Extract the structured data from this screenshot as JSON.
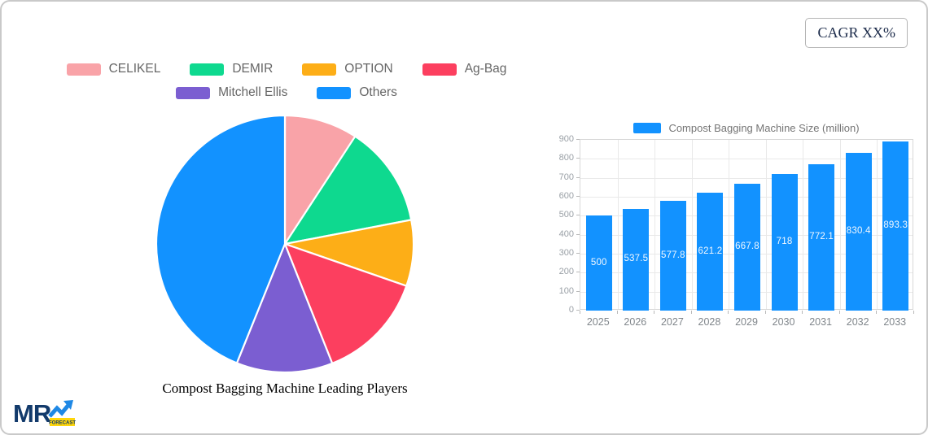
{
  "page": {
    "cagr_label": "CAGR XX%"
  },
  "logo": {
    "text": "MR",
    "sub": "FORECAST",
    "text_color": "#123a6b",
    "arrow_color": "#1e88e5",
    "tag_color": "#ffd60a"
  },
  "chart_data": [
    {
      "type": "pie",
      "title": "Compost Bagging Machine Leading Players",
      "legend_position": "top",
      "slices": [
        {
          "label": "CELIKEL",
          "percent": 9.2,
          "color": "#F9A3A8"
        },
        {
          "label": "DEMIR",
          "percent": 12.8,
          "color": "#0ED98F"
        },
        {
          "label": "OPTION",
          "percent": 8.3,
          "color": "#FDAE17"
        },
        {
          "label": "Ag-Bag",
          "percent": 13.7,
          "color": "#FC3F5F"
        },
        {
          "label": "Mitchell Ellis",
          "percent": 12.1,
          "color": "#7B5ED1"
        },
        {
          "label": "Others",
          "percent": 43.9,
          "color": "#1292FF"
        }
      ]
    },
    {
      "type": "bar",
      "legend": "Compost Bagging Machine Size (million)",
      "categories": [
        "2025",
        "2026",
        "2027",
        "2028",
        "2029",
        "2030",
        "2031",
        "2032",
        "2033"
      ],
      "values": [
        500,
        537.5,
        577.8,
        621.2,
        667.8,
        718,
        772.1,
        830.4,
        893.3
      ],
      "value_labels": [
        "500",
        "537.5",
        "577.8",
        "621.2",
        "667.8",
        "718",
        "772.1",
        "830.4",
        "893.3"
      ],
      "bar_color": "#1292FF",
      "ylim": [
        0,
        900
      ],
      "ytick_step": 100,
      "grid": true
    }
  ]
}
